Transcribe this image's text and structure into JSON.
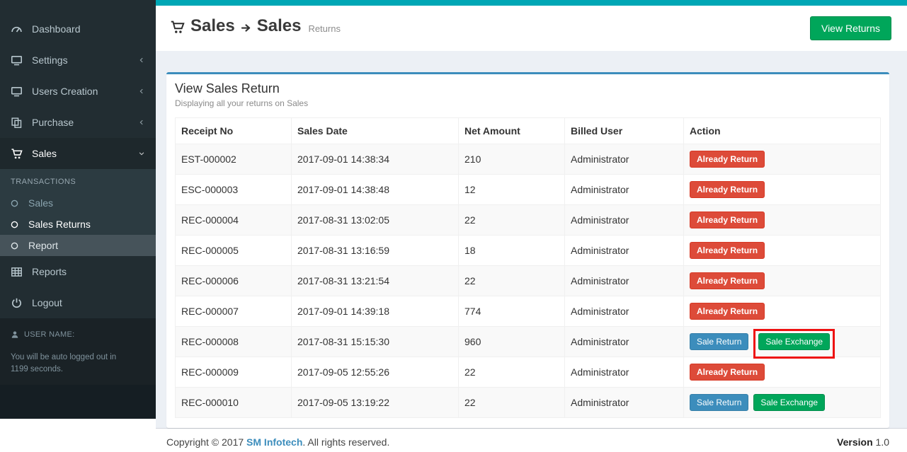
{
  "colors": {
    "topbar": "#00a7b5",
    "panel_accent": "#3c8dbc",
    "danger": "#dd4b39",
    "primary": "#3c8dbc",
    "success": "#00a65a",
    "highlight": "#ee1111"
  },
  "sidebar": {
    "menu": [
      {
        "label": "Dashboard",
        "icon": "dashboard-icon"
      },
      {
        "label": "Settings",
        "icon": "desktop-icon"
      },
      {
        "label": "Users Creation",
        "icon": "desktop-icon"
      },
      {
        "label": "Purchase",
        "icon": "copy-icon"
      },
      {
        "label": "Sales",
        "icon": "cart-icon"
      }
    ],
    "section_header": "TRANSACTIONS",
    "submenu": [
      {
        "label": "Sales"
      },
      {
        "label": "Sales Returns"
      },
      {
        "label": "Report"
      }
    ],
    "menu_bottom": [
      {
        "label": "Reports",
        "icon": "table-icon"
      },
      {
        "label": "Logout",
        "icon": "power-icon"
      }
    ],
    "user_label": "USER NAME:",
    "logout_notice_line1": "You will be auto logged out in",
    "logout_notice_line2": "1199 seconds."
  },
  "header": {
    "title_primary": "Sales",
    "title_secondary": "Sales",
    "title_secondary_small": "Returns",
    "action_button": "View Returns"
  },
  "panel": {
    "title": "View Sales Return",
    "subtitle": "Displaying all your returns on Sales"
  },
  "table": {
    "columns": [
      "Receipt No",
      "Sales Date",
      "Net Amount",
      "Billed User",
      "Action"
    ],
    "button_labels": {
      "already_return": "Already Return",
      "sale_return": "Sale Return",
      "sale_exchange": "Sale Exchange"
    },
    "rows": [
      {
        "receipt_no": "EST-000002",
        "sales_date": "2017-09-01 14:38:34",
        "net_amount": "210",
        "billed_user": "Administrator",
        "actions": [
          {
            "type": "already_return"
          }
        ]
      },
      {
        "receipt_no": "ESC-000003",
        "sales_date": "2017-09-01 14:38:48",
        "net_amount": "12",
        "billed_user": "Administrator",
        "actions": [
          {
            "type": "already_return"
          }
        ]
      },
      {
        "receipt_no": "REC-000004",
        "sales_date": "2017-08-31 13:02:05",
        "net_amount": "22",
        "billed_user": "Administrator",
        "actions": [
          {
            "type": "already_return"
          }
        ]
      },
      {
        "receipt_no": "REC-000005",
        "sales_date": "2017-08-31 13:16:59",
        "net_amount": "18",
        "billed_user": "Administrator",
        "actions": [
          {
            "type": "already_return"
          }
        ]
      },
      {
        "receipt_no": "REC-000006",
        "sales_date": "2017-08-31 13:21:54",
        "net_amount": "22",
        "billed_user": "Administrator",
        "actions": [
          {
            "type": "already_return"
          }
        ]
      },
      {
        "receipt_no": "REC-000007",
        "sales_date": "2017-09-01 14:39:18",
        "net_amount": "774",
        "billed_user": "Administrator",
        "actions": [
          {
            "type": "already_return"
          }
        ]
      },
      {
        "receipt_no": "REC-000008",
        "sales_date": "2017-08-31 15:15:30",
        "net_amount": "960",
        "billed_user": "Administrator",
        "actions": [
          {
            "type": "sale_return"
          },
          {
            "type": "sale_exchange",
            "highlighted": true
          }
        ]
      },
      {
        "receipt_no": "REC-000009",
        "sales_date": "2017-09-05 12:55:26",
        "net_amount": "22",
        "billed_user": "Administrator",
        "actions": [
          {
            "type": "already_return"
          }
        ]
      },
      {
        "receipt_no": "REC-000010",
        "sales_date": "2017-09-05 13:19:22",
        "net_amount": "22",
        "billed_user": "Administrator",
        "actions": [
          {
            "type": "sale_return"
          },
          {
            "type": "sale_exchange"
          }
        ]
      }
    ]
  },
  "footer": {
    "copyright_prefix": "Copyright © 2017 ",
    "company": "SM Infotech",
    "copyright_suffix": ". All rights reserved.",
    "version_label": "Version",
    "version_value": "1.0"
  }
}
